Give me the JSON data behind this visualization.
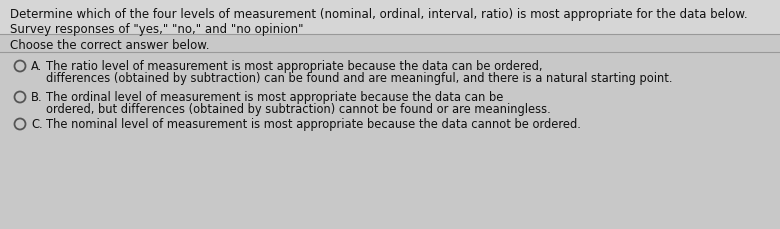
{
  "bg_color": "#c8c8c8",
  "top_section_color": "#d4d4d4",
  "inner_bg": "#d0d0d0",
  "line1": "Determine which of the four levels of measurement (nominal, ordinal, interval, ratio) is most appropriate for the data below.",
  "line2": "Survey responses of \"yes,\" \"no,\" and \"no opinion\"",
  "line3": "Choose the correct answer below.",
  "optA_line1": "  The ratio level of measurement is most appropriate because the data can be ordered,",
  "optA_line2": "differences (obtained by subtraction) can be found and are meaningful, and there is a natural starting point.",
  "optB_line1": "  The ordinal level of measurement is most appropriate because the data can be",
  "optB_line2": "ordered, but differences (obtained by subtraction) cannot be found or are meaningless.",
  "optC_line1": "  The nominal level of measurement is most appropriate because the data cannot be ordered.",
  "label_A": "A.",
  "label_B": "B.",
  "label_C": "C.",
  "circle_color": "#555555",
  "divider_color": "#999999",
  "font_size_main": 8.5,
  "font_size_options": 8.3,
  "text_color": "#111111",
  "fig_width": 7.8,
  "fig_height": 2.3,
  "dpi": 100
}
